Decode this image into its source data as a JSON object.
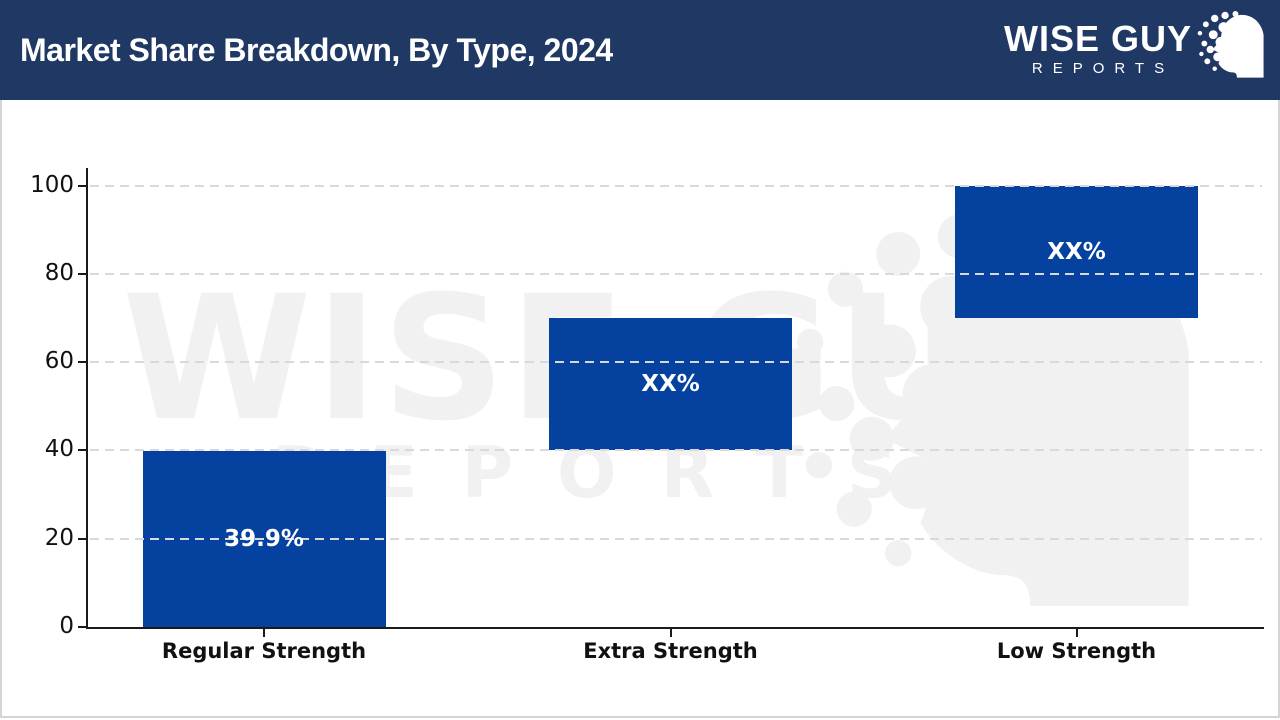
{
  "header": {
    "title": "Market Share Breakdown, By Type, 2024",
    "logo": {
      "line1": "WISE GUY",
      "line2": "REPORTS"
    }
  },
  "watermark": {
    "line1": "WISE GUY",
    "line2": "REPORTS"
  },
  "colors": {
    "header_bg": "#1f3864",
    "bar": "#05419e",
    "bar_label_text": "#ffffff",
    "gridline": "#d9d9d9",
    "axis": "#1a1a1a",
    "watermark": "#f1f1f1",
    "frame_border": "#d5d5d5"
  },
  "chart_data": {
    "type": "bar",
    "subtype": "floating-waterfall",
    "title": "Market Share Breakdown, By Type, 2024",
    "categories": [
      "Regular Strength",
      "Extra Strength",
      "Low Strength"
    ],
    "bars": [
      {
        "category": "Regular Strength",
        "start": 0,
        "end": 39.9,
        "label": "39.9%"
      },
      {
        "category": "Extra Strength",
        "start": 40,
        "end": 70,
        "label": "XX%"
      },
      {
        "category": "Low Strength",
        "start": 70,
        "end": 100,
        "label": "XX%"
      }
    ],
    "ylim": [
      0,
      100
    ],
    "yticks": [
      0,
      20,
      40,
      60,
      80,
      100
    ],
    "xlabel": "",
    "ylabel": "",
    "grid": "dashed-horizontal",
    "legend": "none"
  }
}
